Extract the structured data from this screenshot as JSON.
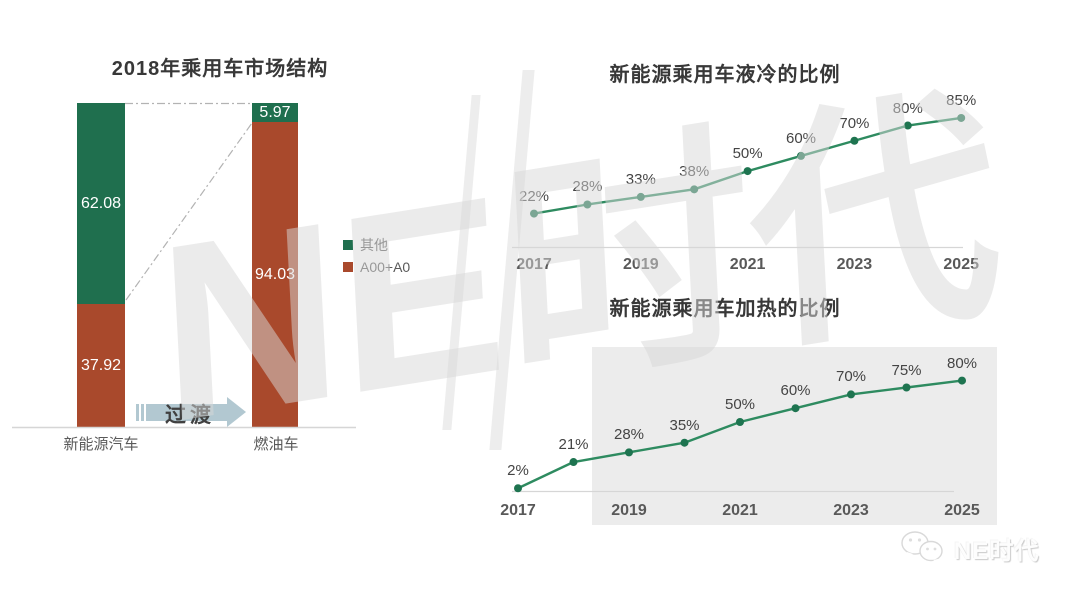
{
  "watermark_text": "NE时代",
  "logo_text": "NE时代",
  "colors": {
    "green_bar": "#1f6f4e",
    "rust_bar": "#a9492c",
    "line_green": "#2e8b60",
    "dot_green": "#1e7450",
    "axis_gray": "#d6d6d6",
    "dash_gray": "#b3b3b3",
    "arrow_fill": "#b2c8d1",
    "panel_gray": "#ececec",
    "watermark_gray": "#d8d8d8"
  },
  "chart_data": [
    {
      "type": "bar",
      "subtype": "stacked-percent",
      "title": "2018年乘用车市场结构",
      "categories": [
        "新能源汽车",
        "燃油车"
      ],
      "series": [
        {
          "name": "A00+A0",
          "color": "#a9492c",
          "values": [
            37.92,
            94.03
          ]
        },
        {
          "name": "其他",
          "color": "#1f6f4e",
          "values": [
            62.08,
            5.97
          ]
        }
      ],
      "legend": [
        {
          "label": "其他",
          "color": "#1f6f4e"
        },
        {
          "label": "A00+A0",
          "color": "#a9492c"
        }
      ],
      "annotation_arrow_label": "过渡",
      "ylim": [
        0,
        100
      ],
      "grid": false,
      "legend_position": "right"
    },
    {
      "type": "line",
      "title": "新能源乘用车液冷的比例",
      "x": [
        2017,
        2018,
        2019,
        2020,
        2021,
        2022,
        2023,
        2024,
        2025
      ],
      "values": [
        22,
        28,
        33,
        38,
        50,
        60,
        70,
        80,
        85
      ],
      "x_tick_labels": [
        "2017",
        "2019",
        "2021",
        "2023",
        "2025"
      ],
      "data_label_format": "percent",
      "ylim": [
        0,
        100
      ],
      "grid": false,
      "has_gray_background_panel": false
    },
    {
      "type": "line",
      "title": "新能源乘用车加热的比例",
      "x": [
        2017,
        2018,
        2019,
        2020,
        2021,
        2022,
        2023,
        2024,
        2025
      ],
      "values": [
        2,
        21,
        28,
        35,
        50,
        60,
        70,
        75,
        80
      ],
      "x_tick_labels": [
        "2017",
        "2019",
        "2021",
        "2023",
        "2025"
      ],
      "data_label_format": "percent",
      "ylim": [
        0,
        100
      ],
      "grid": false,
      "has_gray_background_panel": true
    }
  ]
}
